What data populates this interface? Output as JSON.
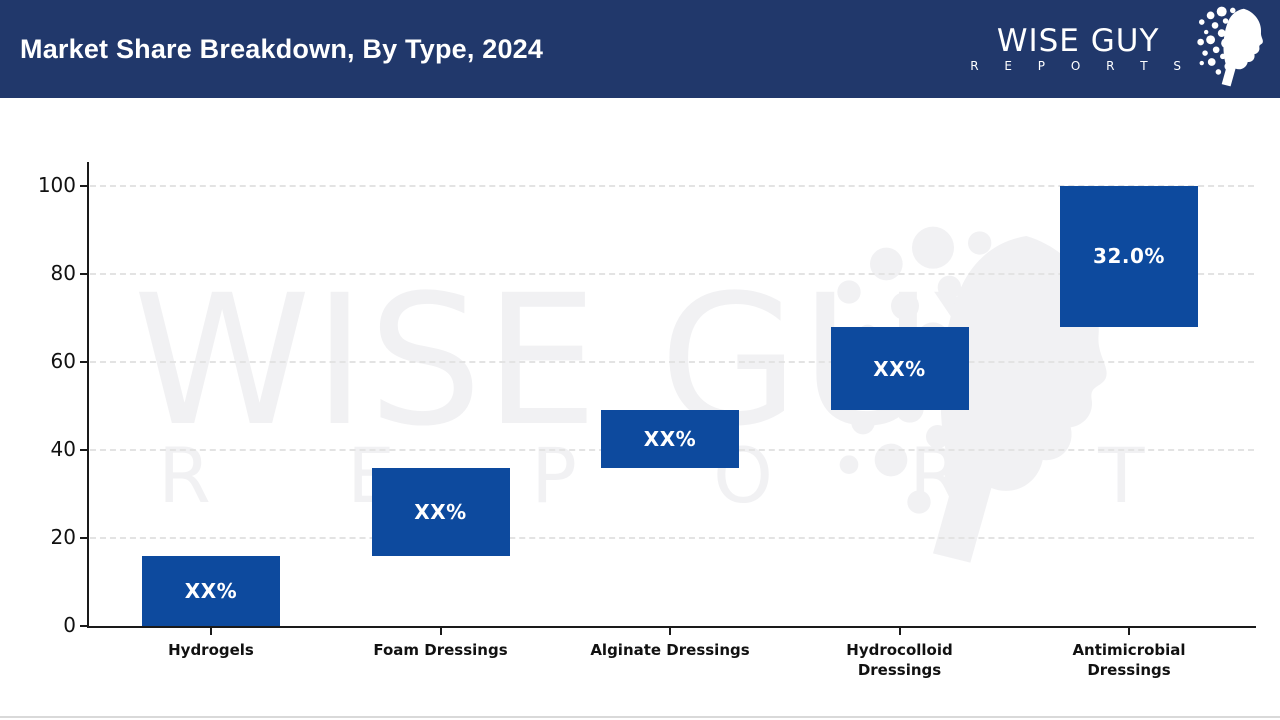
{
  "header": {
    "title": "Market Share Breakdown, By Type, 2024",
    "bg_color": "#21386b",
    "logo": {
      "line1": "WISE GUY",
      "line2": "R E P O R T S"
    }
  },
  "watermark": {
    "line1": "WISE GUY",
    "line2": "R E P O R T S"
  },
  "chart_data": {
    "type": "bar",
    "subtype": "floating-waterfall",
    "title": "Market Share Breakdown, By Type, 2024",
    "categories": [
      "Hydrogels",
      "Foam Dressings",
      "Alginate Dressings",
      "Hydrocolloid Dressings",
      "Antimicrobial Dressings"
    ],
    "segments": [
      {
        "category": "Hydrogels",
        "start": 0,
        "end": 16,
        "label": "XX%"
      },
      {
        "category": "Foam Dressings",
        "start": 16,
        "end": 36,
        "label": "XX%"
      },
      {
        "category": "Alginate Dressings",
        "start": 36,
        "end": 49,
        "label": "XX%"
      },
      {
        "category": "Hydrocolloid Dressings",
        "start": 49,
        "end": 68,
        "label": "XX%"
      },
      {
        "category": "Antimicrobial Dressings",
        "start": 68,
        "end": 100,
        "label": "32.0%"
      }
    ],
    "y_ticks": [
      0,
      20,
      40,
      60,
      80,
      100
    ],
    "ylim": [
      0,
      100
    ],
    "xlabel": "",
    "ylabel": "",
    "grid": "horizontal-dashed",
    "legend": "none",
    "bar_color": "#0d4a9e",
    "label_color": "#ffffff"
  }
}
